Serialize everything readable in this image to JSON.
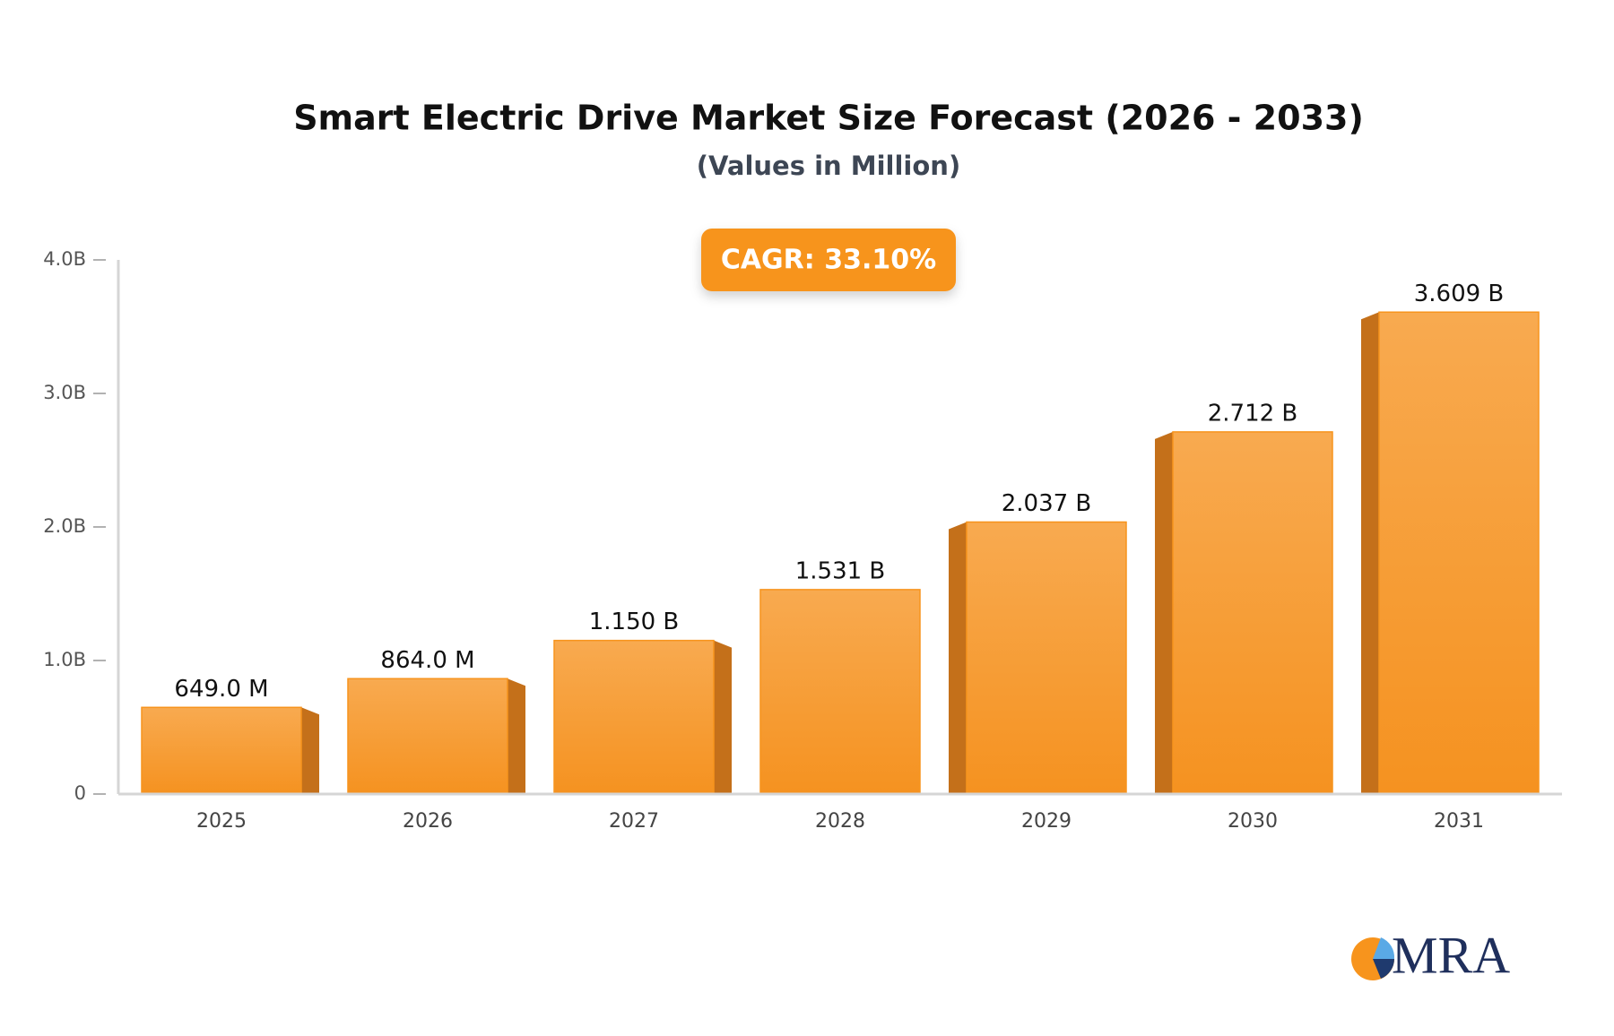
{
  "chart_data": {
    "type": "bar",
    "title": "Smart Electric Drive Market Size Forecast (2026 - 2033)",
    "subtitle": "(Values in Million)",
    "annotation": "CAGR: 33.10%",
    "categories": [
      "2025",
      "2026",
      "2027",
      "2028",
      "2029",
      "2030",
      "2031"
    ],
    "values": [
      0.649,
      0.864,
      1.15,
      1.531,
      2.037,
      2.712,
      3.609
    ],
    "value_labels": [
      "649.0 M",
      "864.0 M",
      "1.150 B",
      "1.531 B",
      "2.037 B",
      "2.712 B",
      "3.609 B"
    ],
    "color": "#f7941d",
    "ylim": [
      0,
      4
    ],
    "yticks": [
      0,
      {
        "value": 1,
        "label": "1.0B"
      },
      {
        "value": 2,
        "label": "2.0B"
      },
      {
        "value": 3,
        "label": "3.0B"
      },
      {
        "value": 4,
        "label": "4.0B"
      }
    ],
    "grid": false
  },
  "logo": "MRA"
}
